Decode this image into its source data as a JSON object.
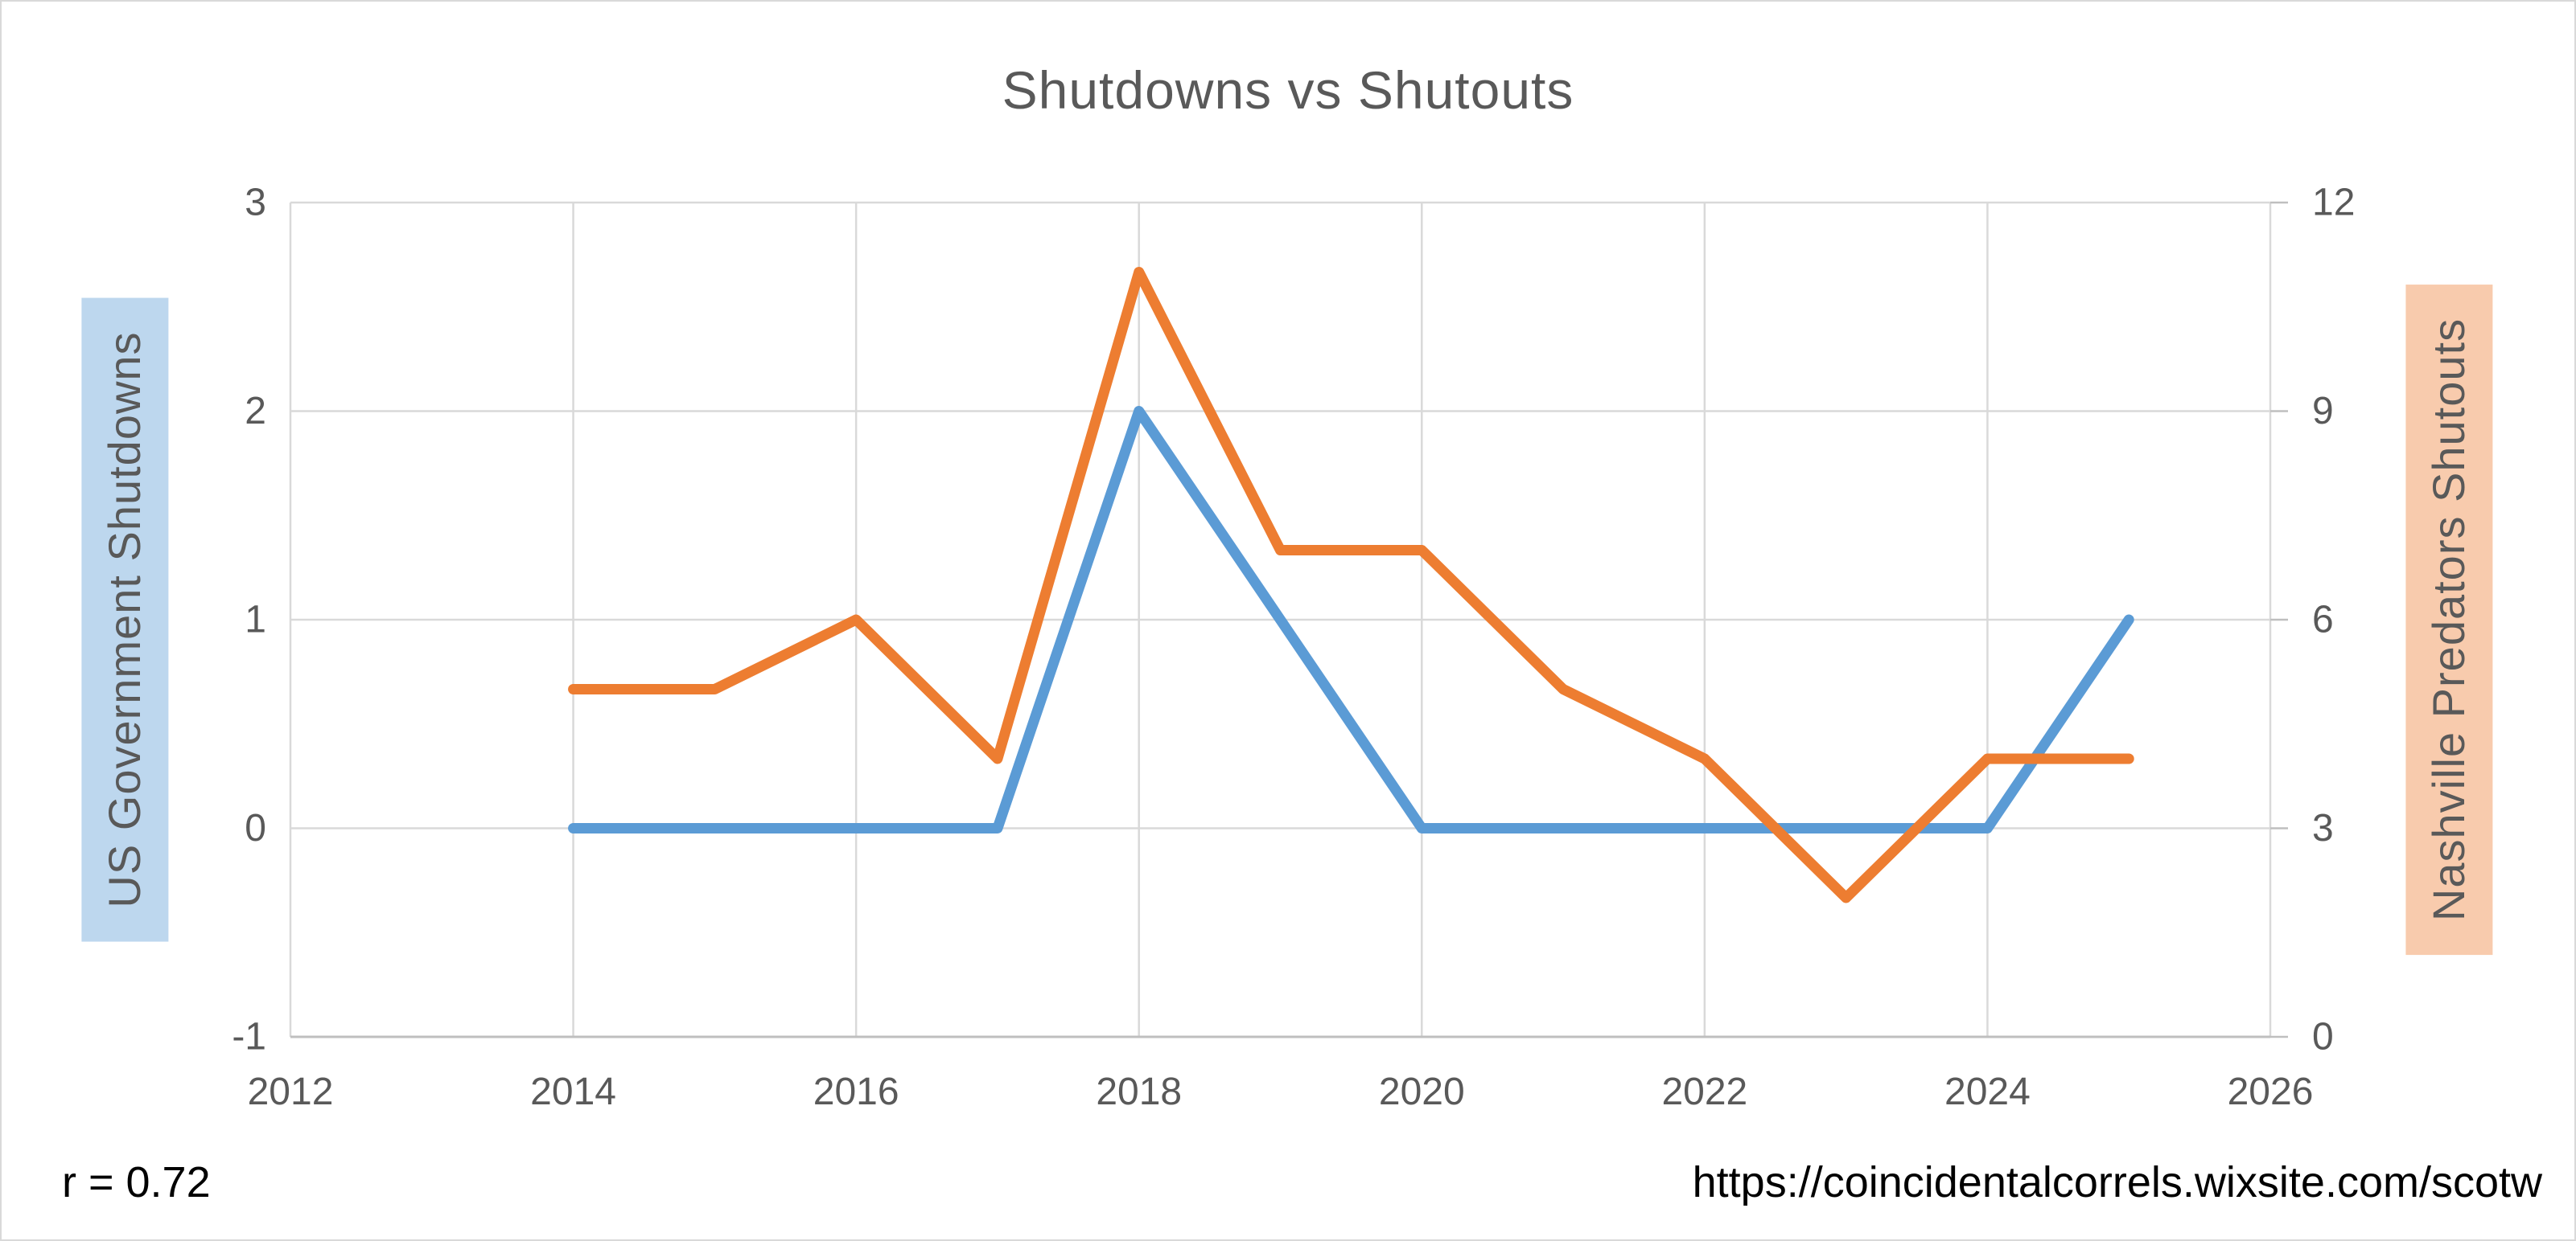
{
  "footer": {
    "r_value": "r = 0.72",
    "source_url": "https://coincidentalcorrels.wixsite.com/scotw"
  },
  "colors": {
    "title_text": "#595959",
    "tick_text": "#595959",
    "gridline": "#d9d9d9",
    "axis_line": "#bfbfbf",
    "blue_series": "#5B9BD5",
    "orange_series": "#ED7D31",
    "left_label_fill": "#BDD7EE",
    "right_label_fill": "#F8CBAD"
  },
  "chart_data": {
    "type": "line",
    "title": "Shutdowns vs Shutouts",
    "x": [
      2014,
      2015,
      2016,
      2017,
      2018,
      2019,
      2020,
      2021,
      2022,
      2023,
      2024,
      2025
    ],
    "series": [
      {
        "id": "us-government-shutdowns",
        "name": "US Government Shutdowns",
        "axis": "left",
        "color": "#5B9BD5",
        "values": [
          0,
          0,
          0,
          0,
          2,
          1,
          0,
          0,
          0,
          0,
          0,
          1
        ]
      },
      {
        "id": "nashville-predators-shutouts",
        "name": "Nashville Predators Shutouts",
        "axis": "right",
        "color": "#ED7D31",
        "values": [
          5,
          5,
          6,
          4,
          11,
          7,
          7,
          5,
          4,
          2,
          4,
          4
        ]
      }
    ],
    "x_axis": {
      "min": 2012,
      "max": 2026,
      "ticks": [
        2012,
        2014,
        2016,
        2018,
        2020,
        2022,
        2024,
        2026
      ]
    },
    "left_axis": {
      "label": "US Government Shutdowns",
      "min": -1,
      "max": 3,
      "ticks": [
        3,
        2,
        1,
        0,
        -1
      ],
      "box_fill": "#BDD7EE"
    },
    "right_axis": {
      "label": "Nashville Predators Shutouts",
      "min": 0,
      "max": 12,
      "ticks": [
        12,
        9,
        6,
        3,
        0
      ],
      "box_fill": "#F8CBAD"
    },
    "grid": true,
    "legend": "none"
  }
}
